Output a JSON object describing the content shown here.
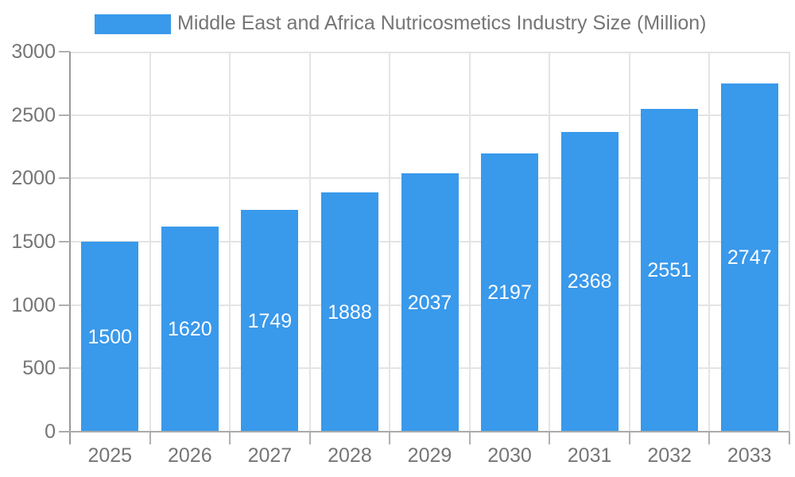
{
  "legend": {
    "label": "Middle East and Africa Nutricosmetics Industry Size (Million)"
  },
  "chart_data": {
    "type": "bar",
    "title": "Middle East and Africa Nutricosmetics Industry Size (Million)",
    "categories": [
      "2025",
      "2026",
      "2027",
      "2028",
      "2029",
      "2030",
      "2031",
      "2032",
      "2033"
    ],
    "values": [
      1500,
      1620,
      1749,
      1888,
      2037,
      2197,
      2368,
      2551,
      2747
    ],
    "xlabel": "",
    "ylabel": "",
    "ylim": [
      0,
      3000
    ],
    "yticks": [
      0,
      500,
      1000,
      1500,
      2000,
      2500,
      3000
    ],
    "grid": "on",
    "legend_position": "top",
    "bar_color": "#3999EB",
    "value_label_color": "#ffffff",
    "axis_label_color": "#757575",
    "gridline_color": "#e4e4e4"
  }
}
